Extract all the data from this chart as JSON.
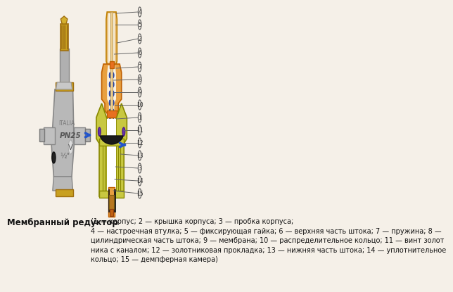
{
  "bg_color": "#f5f0e8",
  "label_title": "Мембранный редуктор",
  "caption_text": "(1 — корпус; 2 — крышка корпуса; 3 — пробка корпуса;\n4 — настроечная втулка; 5 — фиксирующая гайка; 6 — верхняя часть штока; 7 — пружина; 8 —\nцилиндрическая часть штока; 9 — мембрана; 10 — распределительное кольцо; 11 — винт золот\nника с каналом; 12 — золотниковая прокладка; 13 — нижняя часть штока; 14 — уплотнительное\nкольцо; 15 — демпферная камера)",
  "caption_fontsize": 7.0,
  "label_title_fontsize": 8.5,
  "arrow_color": "#2255cc",
  "diagram_colors": {
    "outer_body": "#c8c840",
    "upper_body": "#e8a040",
    "spring_dots": "#2244aa",
    "stem_center": "#f0d090",
    "membrane": "#111111",
    "membrane_orange": "#e87020",
    "inner_parts": "#cc6010",
    "brass": "#d4a820",
    "cap_top": "#e8c080"
  }
}
